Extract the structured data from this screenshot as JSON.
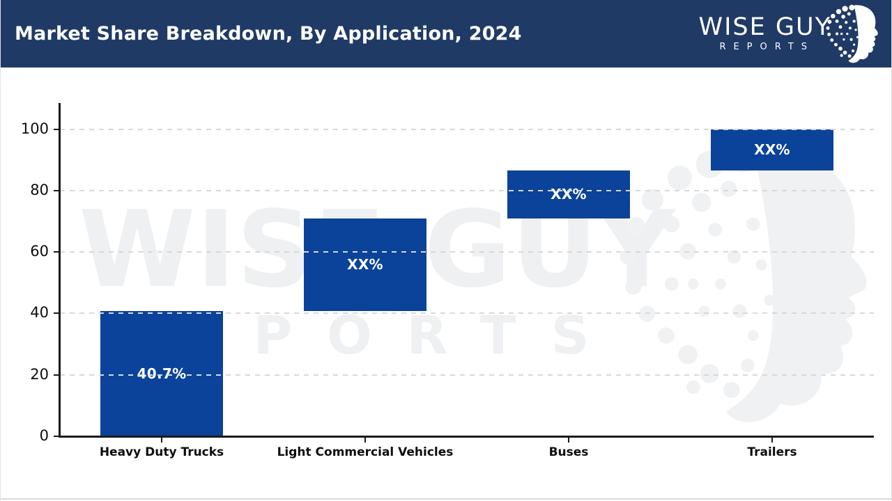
{
  "header": {
    "title": "Market Share Breakdown, By Application, 2024",
    "logo": {
      "line1": "WISE GUY",
      "line2": "REPORTS"
    }
  },
  "watermark": {
    "line1": "WISE GUY",
    "line2": "REPORTS"
  },
  "chart_data": {
    "type": "bar",
    "subtype": "waterfall",
    "title": "Market Share Breakdown, By Application, 2024",
    "xlabel": "",
    "ylabel": "",
    "categories": [
      "Heavy Duty Trucks",
      "Light Commercial Vehicles",
      "Buses",
      "Trailers"
    ],
    "segments": [
      {
        "category": "Heavy Duty Trucks",
        "start": 0,
        "end": 40.7,
        "value": 40.7,
        "label": "40.7%"
      },
      {
        "category": "Light Commercial Vehicles",
        "start": 40.7,
        "end": 71.0,
        "value": 30.3,
        "label": "XX%"
      },
      {
        "category": "Buses",
        "start": 71.0,
        "end": 86.5,
        "value": 15.5,
        "label": "XX%"
      },
      {
        "category": "Trailers",
        "start": 86.5,
        "end": 100,
        "value": 13.5,
        "label": "XX%"
      }
    ],
    "yticks": [
      0,
      20,
      40,
      60,
      80,
      100
    ],
    "ylim": [
      0,
      100
    ],
    "grid": "horizontal-dashed",
    "legend": "none"
  },
  "colors": {
    "bar_blue": "#0a4399",
    "header_navy": "#203a66",
    "grid_gray": "#d8d8d8",
    "axis_black": "#1a1a1a",
    "watermark_gray": "#eff0f2",
    "label_white": "#ffffff"
  },
  "icons": {
    "logo_face": "dotted-face-icon",
    "watermark_face": "dotted-face-icon"
  }
}
